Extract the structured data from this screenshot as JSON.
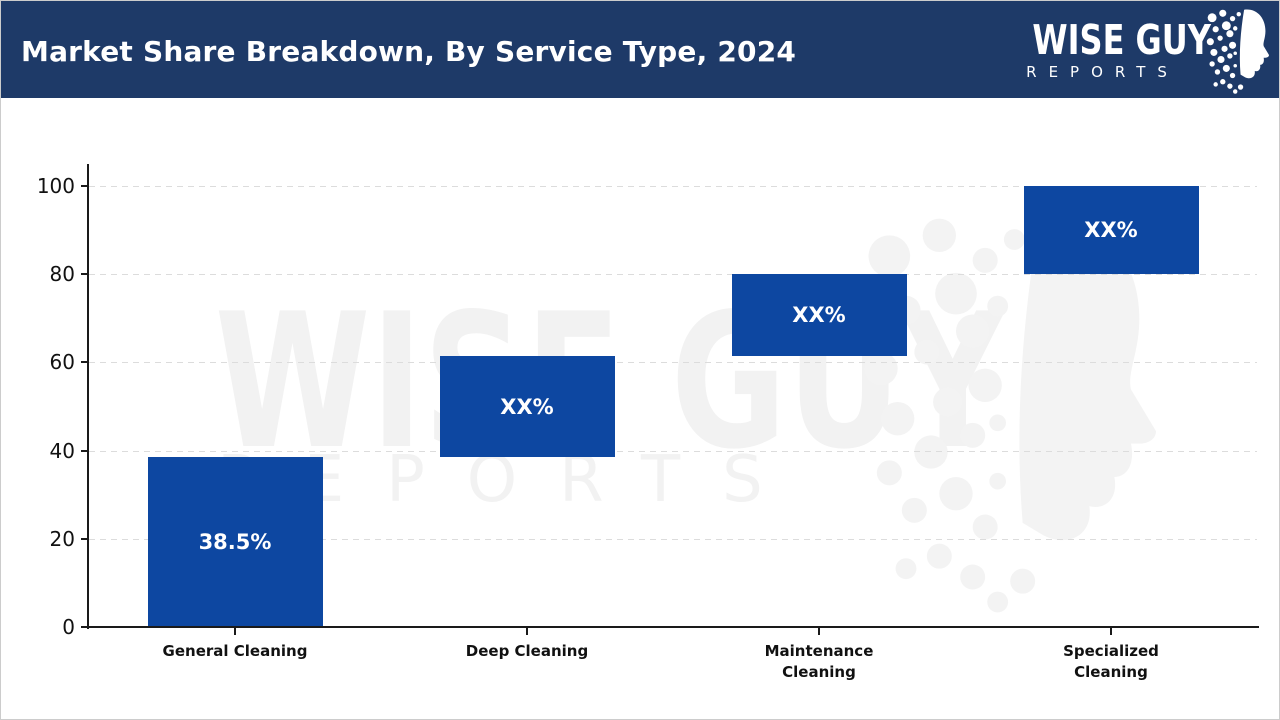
{
  "header": {
    "title": "Market Share Breakdown, By Service Type, 2024",
    "logo": {
      "line1": "WISE GUY",
      "line2": "REPORTS"
    }
  },
  "watermark": {
    "line1": "WISE GUY",
    "line2": "REPORTS"
  },
  "colors": {
    "header_bg": "#1e3a68",
    "bar": "#0d47a1",
    "bar_label": "#ffffff",
    "axis": "#1a1a1a",
    "grid": "#dcdcdc",
    "tick_label": "#111111",
    "watermark": "#f2f2f2",
    "page_border": "#cccccc"
  },
  "chart_data": {
    "type": "bar",
    "subtype": "waterfall",
    "title": "Market Share Breakdown, By Service Type, 2024",
    "categories": [
      "General Cleaning",
      "Deep Cleaning",
      "Maintenance\nCleaning",
      "Specialized\nCleaning"
    ],
    "segments": [
      {
        "category": "General Cleaning",
        "start": 0,
        "end": 38.5,
        "label": "38.5%"
      },
      {
        "category": "Deep Cleaning",
        "start": 38.5,
        "end": 61.5,
        "label": "XX%"
      },
      {
        "category": "Maintenance Cleaning",
        "start": 61.5,
        "end": 80,
        "label": "XX%"
      },
      {
        "category": "Specialized Cleaning",
        "start": 80,
        "end": 100,
        "label": "XX%"
      }
    ],
    "yticks": [
      0,
      20,
      40,
      60,
      80,
      100
    ],
    "ylim": [
      0,
      105
    ],
    "xlabel": "",
    "ylabel": "",
    "grid": "horizontal-dashed",
    "legend": "none"
  }
}
